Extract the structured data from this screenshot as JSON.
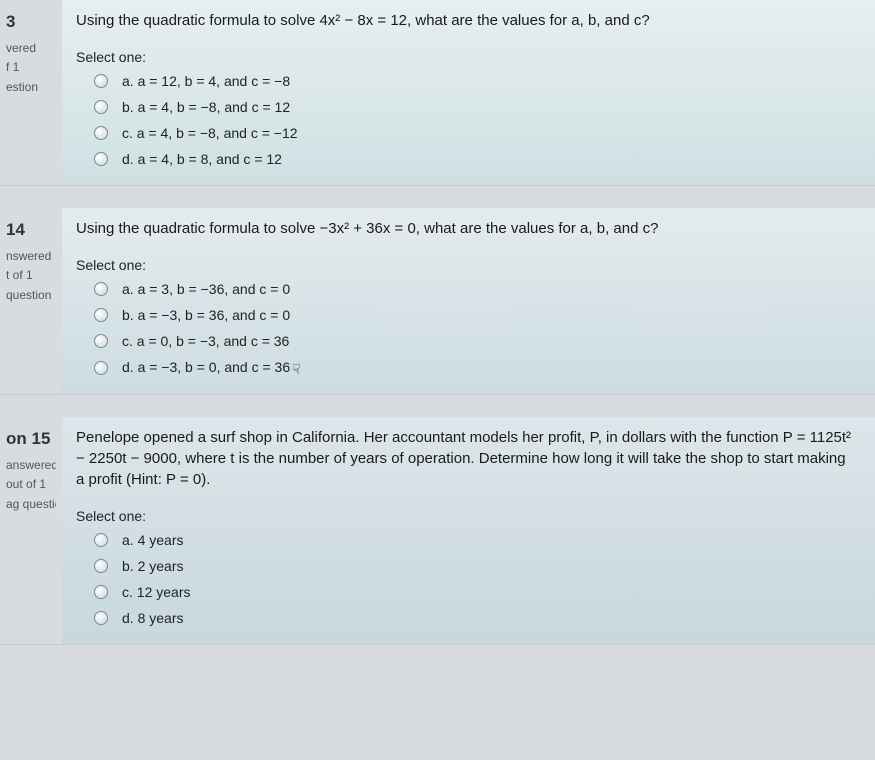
{
  "questions": [
    {
      "number": "3",
      "meta": [
        "vered",
        "f 1",
        "estion"
      ],
      "prompt_pre": "Using the quadratic formula to solve ",
      "prompt_math": "4x² − 8x = 12",
      "prompt_post": ", what are the values for a, b, and c?",
      "select_label": "Select one:",
      "options": [
        "a. a = 12, b = 4, and c = −8",
        "b. a = 4, b = −8, and c = 12",
        "c. a = 4, b = −8, and c = −12",
        "d. a = 4, b = 8, and c = 12"
      ]
    },
    {
      "number": "14",
      "meta": [
        "nswered",
        "t of 1",
        "question"
      ],
      "prompt_pre": "Using the quadratic formula to solve ",
      "prompt_math": "−3x² + 36x = 0",
      "prompt_post": ", what are the values for a, b, and c?",
      "select_label": "Select one:",
      "options": [
        "a. a = 3, b = −36, and c = 0",
        "b. a = −3, b = 36, and c = 0",
        "c. a = 0, b = −3, and c = 36",
        "d. a = −3, b = 0, and c = 36"
      ],
      "cursor_after_option": 3
    },
    {
      "number": "on 15",
      "meta": [
        "answered",
        "out of 1",
        "ag question"
      ],
      "prompt_full": "Penelope opened a surf shop in California. Her accountant models her profit, P, in dollars with the function P = 1125t² − 2250t − 9000, where t is the number of years of operation. Determine how long it will take the shop to start making a profit (Hint: P = 0).",
      "select_label": "Select one:",
      "options": [
        "a. 4 years",
        "b. 2 years",
        "c. 12 years",
        "d. 8 years"
      ]
    }
  ],
  "cursor_glyph": "☟",
  "colors": {
    "page_bg": "#d8dce0",
    "panel_grad_top": "#e6eef0",
    "panel_grad_bot": "#cddce0",
    "text": "#1a1a1a",
    "meta_text": "#555"
  }
}
